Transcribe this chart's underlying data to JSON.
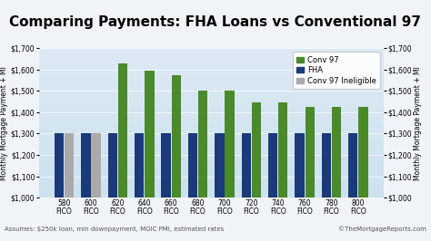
{
  "title": "Comparing Payments: FHA Loans vs Conventional 97",
  "ylabel_left": "Monthly Mortgage Payment + MI",
  "ylabel_right": "Monthly Mortgage Payment + MI",
  "footnote_left": "Assumes: $250k loan, min downpayment, MGIC PMI, estimated rates",
  "footnote_right": "©TheMortgageReports.com",
  "categories": [
    "580\nFICO",
    "600\nFICO",
    "620\nFICO",
    "640\nFICO",
    "660\nFICO",
    "680\nFICO",
    "700\nFICO",
    "720\nFICO",
    "740\nFICO",
    "760\nFICO",
    "780\nFICO",
    "800\nFICO"
  ],
  "conv97": [
    null,
    null,
    1630,
    1595,
    1575,
    1500,
    1500,
    1445,
    1445,
    1425,
    1425,
    1425
  ],
  "fha": [
    1300,
    1300,
    1300,
    1300,
    1300,
    1300,
    1300,
    1300,
    1300,
    1300,
    1300,
    1300
  ],
  "conv97_ineligible": [
    1300,
    1300,
    null,
    null,
    null,
    null,
    null,
    null,
    null,
    null,
    null,
    null
  ],
  "ylim": [
    1000,
    1700
  ],
  "yticks": [
    1000,
    1100,
    1200,
    1300,
    1400,
    1500,
    1600,
    1700
  ],
  "color_conv97": "#4a8a2a",
  "color_fha": "#1a3a7a",
  "color_ineligible": "#aaaaaa",
  "title_bg": "#ffffff",
  "chart_bg_top": "#cddde8",
  "chart_bg_bottom": "#ddeaf5",
  "footnote_bg": "#f0f4f8",
  "title_fontsize": 11,
  "legend_fontsize": 6,
  "tick_fontsize": 5.5,
  "footnote_fontsize": 5,
  "ylabel_fontsize": 5.5
}
